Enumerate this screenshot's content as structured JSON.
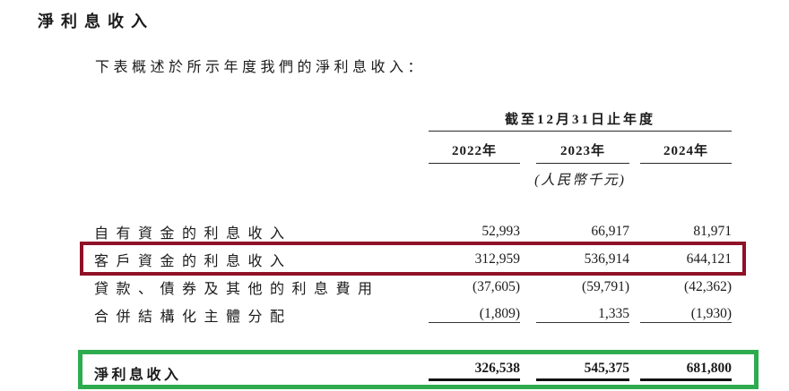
{
  "doc": {
    "title": "淨利息收入",
    "intro": "下表概述於所示年度我們的淨利息收入："
  },
  "table": {
    "period_header": "截至12月31日止年度",
    "columns": [
      "2022年",
      "2023年",
      "2024年"
    ],
    "unit_note": "(人民幣千元)",
    "rows": [
      {
        "label": "自有資金的利息收入",
        "values": [
          "52,993",
          "66,917",
          "81,971"
        ]
      },
      {
        "label": "客戶資金的利息收入",
        "values": [
          "312,959",
          "536,914",
          "644,121"
        ],
        "highlight": "red-box"
      },
      {
        "label": "貸款、債券及其他的利息費用",
        "values": [
          "(37,605)",
          "(59,791)",
          "(42,362)"
        ]
      },
      {
        "label": "合併結構化主體分配",
        "values": [
          "(1,809)",
          "1,335",
          "(1,930)"
        ]
      }
    ],
    "total": {
      "label": "淨利息收入",
      "values": [
        "326,538",
        "545,375",
        "681,800"
      ],
      "highlight": "green-box"
    },
    "highlights": {
      "red_box_color": "#8E1127",
      "green_box_color": "#2EAB4F"
    }
  }
}
